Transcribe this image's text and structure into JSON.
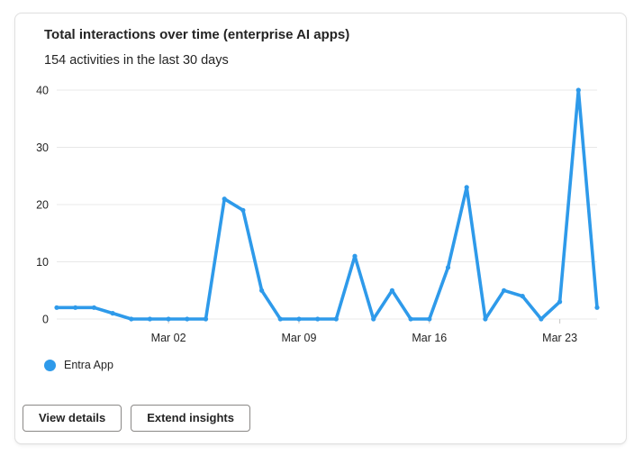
{
  "card": {
    "title": "Total interactions over time (enterprise AI apps)",
    "subtitle": "154 activities in the last 30 days"
  },
  "chart_data": {
    "type": "line",
    "title": "Total interactions over time (enterprise AI apps)",
    "x": [
      "Feb 24",
      "Feb 25",
      "Feb 26",
      "Feb 27",
      "Feb 28",
      "Mar 01",
      "Mar 02",
      "Mar 03",
      "Mar 04",
      "Mar 05",
      "Mar 06",
      "Mar 07",
      "Mar 08",
      "Mar 09",
      "Mar 10",
      "Mar 11",
      "Mar 12",
      "Mar 13",
      "Mar 14",
      "Mar 15",
      "Mar 16",
      "Mar 17",
      "Mar 18",
      "Mar 19",
      "Mar 20",
      "Mar 21",
      "Mar 22",
      "Mar 23",
      "Mar 24",
      "Mar 25"
    ],
    "series": [
      {
        "name": "Entra App",
        "values": [
          2,
          2,
          2,
          1,
          0,
          0,
          0,
          0,
          0,
          21,
          19,
          5,
          0,
          0,
          0,
          0,
          11,
          0,
          5,
          0,
          0,
          9,
          23,
          0,
          5,
          4,
          0,
          3,
          40,
          2
        ]
      }
    ],
    "total_shown": 154,
    "xlabel": "",
    "ylabel": "",
    "ylim": [
      0,
      40
    ],
    "yticks": [
      0,
      10,
      20,
      30,
      40
    ],
    "xtick_indices": [
      6,
      13,
      20,
      27
    ],
    "xtick_labels": [
      "Mar 02",
      "Mar 09",
      "Mar 16",
      "Mar 23"
    ],
    "grid": true,
    "legend_position": "bottom-left"
  },
  "buttons": {
    "view_details": "View details",
    "extend_insights": "Extend insights"
  },
  "colors": {
    "accent": "#2e9aea",
    "grid": "#e8e8e8",
    "tick": "#c8c6c4",
    "axis_text": "#242424",
    "card_border": "#e0e0e0",
    "button_border": "#8a8886"
  }
}
